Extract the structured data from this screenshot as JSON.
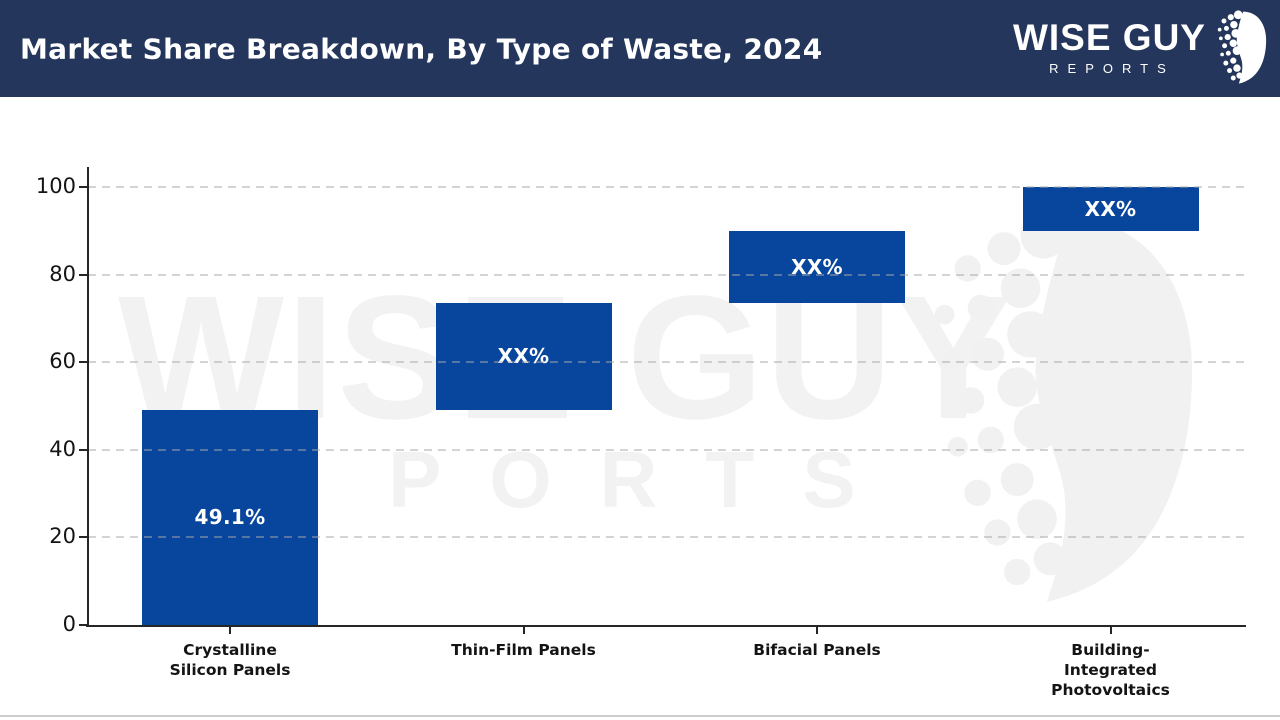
{
  "header": {
    "title": "Market Share Breakdown, By Type of Waste, 2024",
    "logo_line1": "WISE GUY",
    "logo_line2": "REPORTS",
    "bg_color": "#24365c"
  },
  "watermark": {
    "line1": "WISE GUY",
    "line2": "PORTS"
  },
  "chart_data": {
    "type": "bar",
    "subtype": "waterfall",
    "title": "Market Share Breakdown, By Type of Waste, 2024",
    "categories": [
      {
        "label": "Crystalline Silicon Panels",
        "lines": [
          "Crystalline",
          "Silicon Panels"
        ]
      },
      {
        "label": "Thin-Film Panels",
        "lines": [
          "Thin-Film Panels"
        ]
      },
      {
        "label": "Bifacial Panels",
        "lines": [
          "Bifacial Panels"
        ]
      },
      {
        "label": "Building-Integrated Photovoltaics",
        "lines": [
          "Building-",
          "Integrated",
          "Photovoltaics"
        ]
      }
    ],
    "segments": [
      {
        "start": 0,
        "end": 49.1,
        "label": "49.1%"
      },
      {
        "start": 49.1,
        "end": 73.5,
        "label": "XX%"
      },
      {
        "start": 73.5,
        "end": 90,
        "label": "XX%"
      },
      {
        "start": 90,
        "end": 100,
        "label": "XX%"
      }
    ],
    "xlabel": "",
    "ylabel": "",
    "ylim": [
      0,
      100
    ],
    "yticks": [
      0,
      20,
      40,
      60,
      80,
      100
    ],
    "grid": "horizontal-dashed",
    "legend": "none",
    "colors": {
      "bar": "#08459c",
      "bar_label": "#ffffff",
      "axis": "#262626",
      "grid": "#d9d9d9",
      "tick_label": "#141414"
    }
  }
}
